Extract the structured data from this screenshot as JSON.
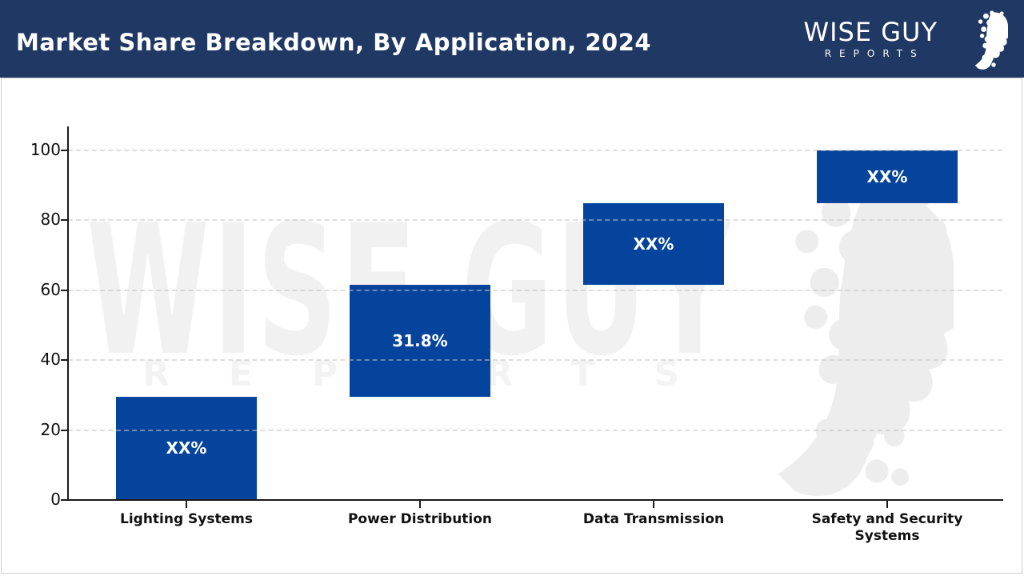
{
  "header": {
    "title": "Market Share Breakdown, By Application, 2024",
    "logo": {
      "line1": "WISE GUY",
      "line2": "REPORTS"
    }
  },
  "watermark": {
    "line1": "WISE GUY",
    "line2": "REPORTS"
  },
  "colors": {
    "header_bg": "#203864",
    "bar": "#05449c",
    "grid": "#d8d8d8",
    "axis": "#1a1a1a",
    "bar_label": "#ffffff",
    "watermark": "#f1f1f1"
  },
  "chart_data": {
    "type": "bar",
    "variant": "floating-waterfall",
    "title": "Market Share Breakdown, By Application, 2024",
    "xlabel": "",
    "ylabel": "",
    "ylim": [
      0,
      106
    ],
    "yticks": [
      0,
      20,
      40,
      60,
      80,
      100
    ],
    "grid": "horizontal-dashed",
    "legend": "none",
    "categories": [
      "Lighting Systems",
      "Power Distribution",
      "Data Transmission",
      "Safety and Security Systems"
    ],
    "segments": [
      {
        "category": "Lighting Systems",
        "base": 0,
        "top": 29.5,
        "label": "XX%"
      },
      {
        "category": "Power Distribution",
        "base": 29.6,
        "top": 61.4,
        "label": "31.8%"
      },
      {
        "category": "Data Transmission",
        "base": 61.6,
        "top": 84.7,
        "label": "XX%"
      },
      {
        "category": "Safety and Security Systems",
        "base": 84.8,
        "top": 100,
        "label": "XX%"
      }
    ]
  }
}
